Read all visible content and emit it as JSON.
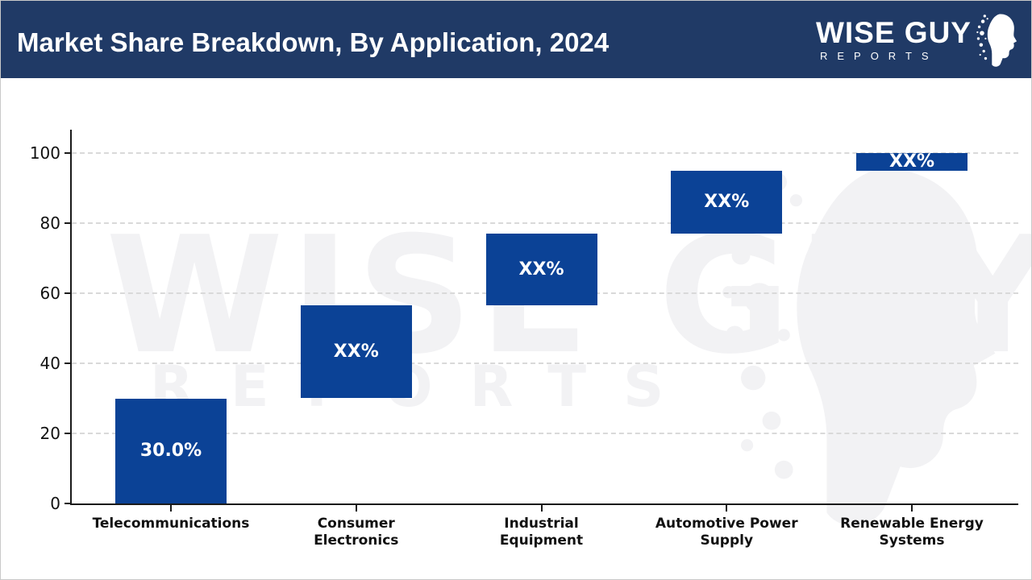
{
  "header": {
    "title": "Market Share Breakdown, By Application, 2024",
    "bg_color": "#203A66",
    "logo": {
      "line1": "WISE GUY",
      "line2": "REPORTS"
    }
  },
  "watermark": {
    "line1": "WISE GUY",
    "line2": "REPORTS"
  },
  "chart_data": {
    "type": "bar",
    "variant": "waterfall",
    "title": "Market Share Breakdown, By Application, 2024",
    "categories": [
      "Telecommunications",
      "Consumer Electronics",
      "Industrial Equipment",
      "Automotive Power Supply",
      "Renewable Energy Systems"
    ],
    "tick_labels": [
      "Telecommunications",
      "Consumer\nElectronics",
      "Industrial\nEquipment",
      "Automotive Power\nSupply",
      "Renewable Energy\nSystems"
    ],
    "segments": [
      {
        "category": "Telecommunications",
        "start": 0,
        "end": 30,
        "label": "30.0%"
      },
      {
        "category": "Consumer Electronics",
        "start": 30,
        "end": 56.5,
        "label": "XX%"
      },
      {
        "category": "Industrial Equipment",
        "start": 56.5,
        "end": 77,
        "label": "XX%"
      },
      {
        "category": "Automotive Power Supply",
        "start": 77,
        "end": 95,
        "label": "XX%"
      },
      {
        "category": "Renewable Energy Systems",
        "start": 95,
        "end": 100,
        "label": "XX%"
      }
    ],
    "values": [
      30,
      26.5,
      20.5,
      18,
      5
    ],
    "bar_labels": [
      "30.0%",
      "XX%",
      "XX%",
      "XX%",
      "XX%"
    ],
    "y_ticks": [
      0,
      20,
      40,
      60,
      80,
      100
    ],
    "ylim": [
      0,
      105
    ],
    "xlabel": "",
    "ylabel": "",
    "grid": "horizontal-dashed",
    "legend": "none",
    "bar_color": "#0B4296",
    "grid_color": "#D9D9D9",
    "axis_color": "#1A1A1A"
  }
}
